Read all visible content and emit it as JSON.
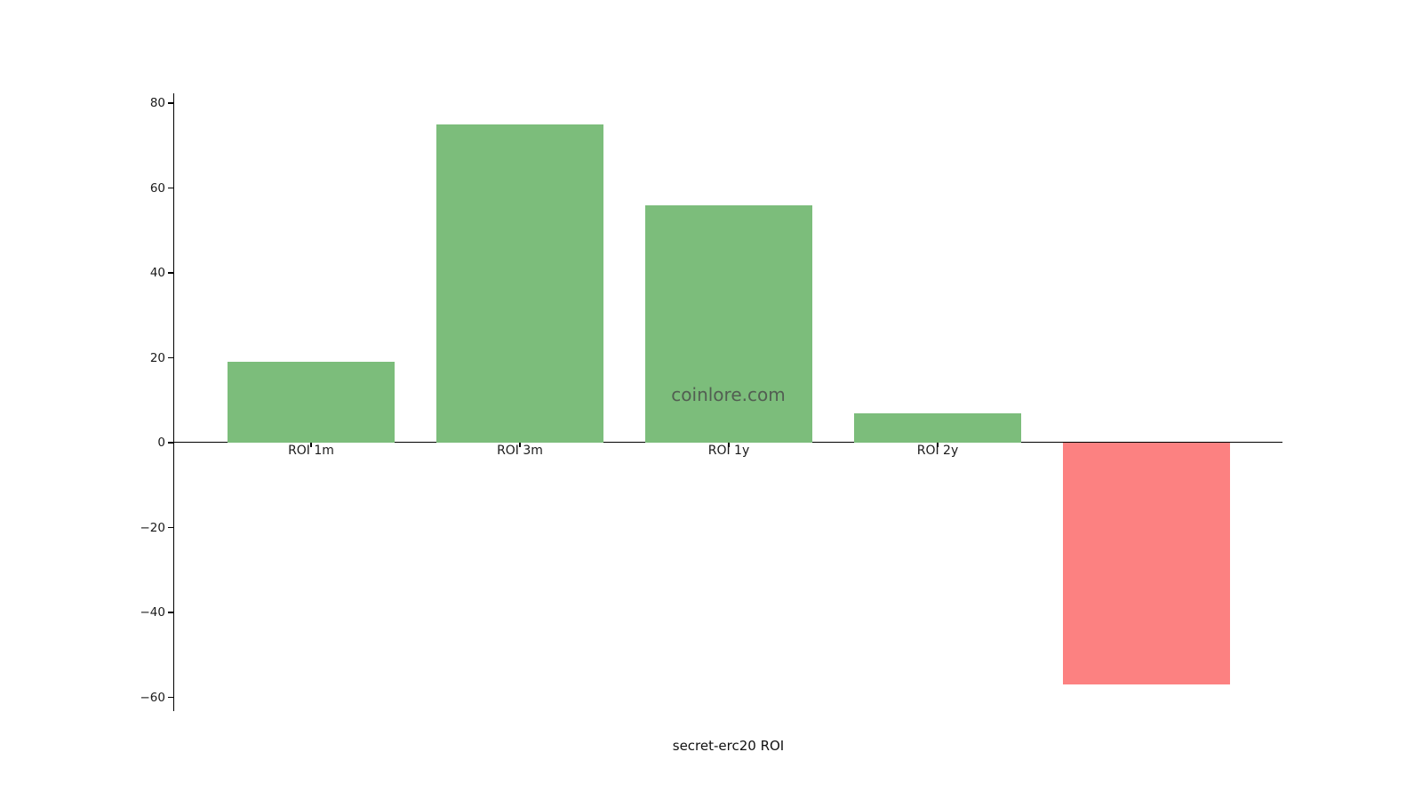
{
  "chart_data": {
    "type": "bar",
    "categories": [
      "ROI 1m",
      "ROI 3m",
      "ROI 1y",
      "ROI 2y",
      ""
    ],
    "values": [
      19,
      75,
      56,
      7,
      -57
    ],
    "xlabel": "secret-erc20 ROI",
    "ylabel": "",
    "y_ticks": [
      80,
      60,
      40,
      20,
      0,
      -20,
      -40,
      -60
    ],
    "ylim": [
      -63,
      82
    ],
    "grid": false,
    "legend": "none",
    "watermark": "coinlore.com",
    "colors": {
      "positive": "#7cbd7b",
      "negative": "#fc8181",
      "axis": "#000000",
      "tick_text": "#1a1a1a",
      "watermark": "#4a4a4a"
    }
  }
}
